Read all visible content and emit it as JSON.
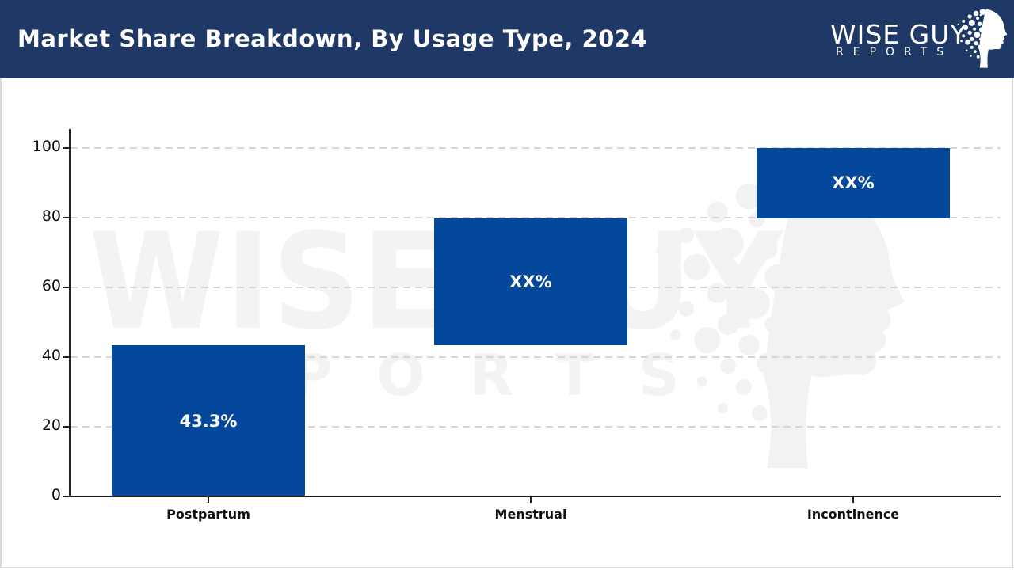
{
  "header": {
    "title": "Market Share Breakdown, By Usage Type, 2024",
    "bg_color": "#1f3866",
    "logo": {
      "line1": "WISE GUY",
      "line2": "REPORTS"
    }
  },
  "watermark": {
    "line1": "WISE GUY",
    "line2": "REPORTS"
  },
  "chart_data": {
    "type": "bar",
    "subtype": "waterfall",
    "title": "Market Share Breakdown, By Usage Type, 2024",
    "categories": [
      "Postpartum",
      "Menstrual",
      "Incontinence"
    ],
    "segments": [
      {
        "category": "Postpartum",
        "start": 0,
        "end": 43.3,
        "label": "43.3%"
      },
      {
        "category": "Menstrual",
        "start": 43.3,
        "end": 79.8,
        "label": "XX%"
      },
      {
        "category": "Incontinence",
        "start": 79.8,
        "end": 100,
        "label": "XX%"
      }
    ],
    "xlabel": "",
    "ylabel": "",
    "ylim": [
      0,
      100
    ],
    "yticks": [
      0,
      20,
      40,
      60,
      80,
      100
    ],
    "grid": "horizontal-dashed",
    "legend": "none",
    "bar_color": "#04489c",
    "bar_label_color": "#ffffff",
    "grid_color": "#d6d6d6",
    "axis_color": "#1f1f1f"
  }
}
